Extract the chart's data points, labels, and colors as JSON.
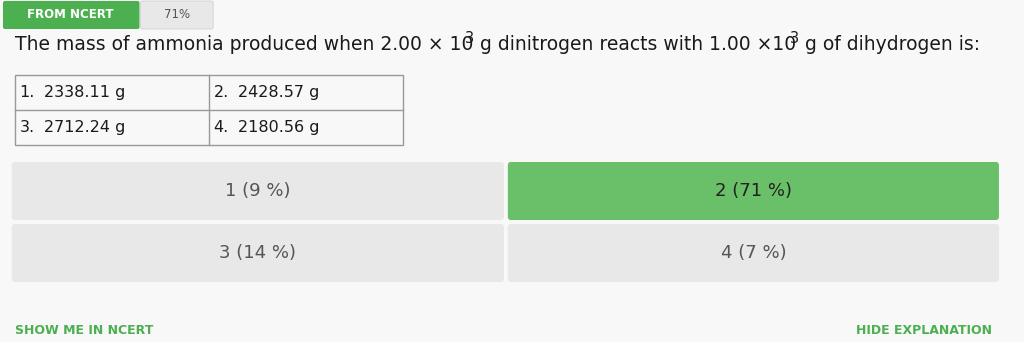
{
  "background_color": "#f8f8f8",
  "question_segments": [
    {
      "text": "The mass of ammonia produced when 2.00 × 10",
      "super": false
    },
    {
      "text": "3",
      "super": true
    },
    {
      "text": " g dinitrogen reacts with 1.00 ×10",
      "super": false
    },
    {
      "text": "3",
      "super": true
    },
    {
      "text": " g of dihydrogen is:",
      "super": false
    }
  ],
  "options": [
    {
      "num": "1.",
      "val": "2338.11 g"
    },
    {
      "num": "2.",
      "val": "2428.57 g"
    },
    {
      "num": "3.",
      "val": "2712.24 g"
    },
    {
      "num": "4.",
      "val": "2180.56 g"
    }
  ],
  "bars": [
    {
      "label": "1 (9 %)",
      "color": "#e8e8e8",
      "text_color": "#555555",
      "col": 0,
      "row": 0
    },
    {
      "label": "2 (71 %)",
      "color": "#6abf69",
      "text_color": "#222222",
      "col": 1,
      "row": 0
    },
    {
      "label": "3 (14 %)",
      "color": "#e8e8e8",
      "text_color": "#555555",
      "col": 0,
      "row": 1
    },
    {
      "label": "4 (7 %)",
      "color": "#e8e8e8",
      "text_color": "#555555",
      "col": 1,
      "row": 1
    }
  ],
  "header_btn_color": "#4caf50",
  "header_btn_text": "FROM NCERT",
  "header_btn_text_color": "#ffffff",
  "badge_color": "#e8e8e8",
  "badge_text": "71%",
  "badge_text_color": "#555555",
  "table_border_color": "#999999",
  "bottom_link_color": "#4caf50",
  "bottom_left": "SHOW ME IN NCERT",
  "bottom_right": "HIDE EXPLANATION",
  "font_size_question": 13.5,
  "font_size_options": 11.5,
  "font_size_bars": 13,
  "font_size_header": 8.5,
  "font_size_bottom": 9
}
